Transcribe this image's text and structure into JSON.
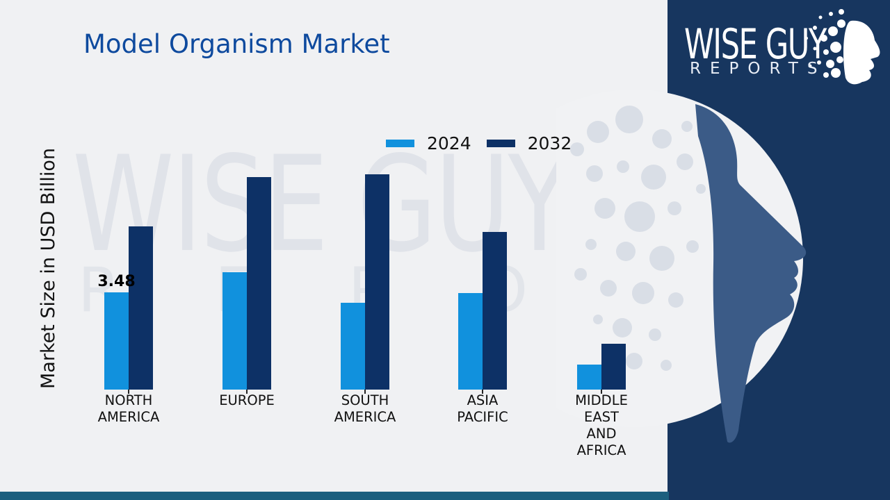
{
  "title": "Model Organism Market",
  "y_axis_label": "Market Size in USD Billion",
  "watermark": {
    "line1": "WISE GUY",
    "line2": "R E P O R T S"
  },
  "logo": {
    "name": "WISE GUY",
    "sub": "REPORTS",
    "icon": "dotted-head-profile"
  },
  "colors": {
    "background": "#f0f1f3",
    "title_blue": "#0e4a9e",
    "bar_2024": "#1191dd",
    "bar_2032": "#0d3166",
    "panel_navy": "#17365f",
    "panel_face_blue": "#3b5b87",
    "panel_circle": "#f1f2f4",
    "panel_dots": "#d9dee6",
    "bottom_strip_teal": "#1d5f7e",
    "watermark_gray": "#e0e3e9"
  },
  "chart_data": {
    "type": "bar",
    "title": "Model Organism Market",
    "ylabel": "Market Size in USD Billion",
    "unit": "USD Billion",
    "categories": [
      "North America",
      "Europe",
      "South America",
      "Asia Pacific",
      "Middle East and Africa"
    ],
    "category_display_lines": [
      [
        "NORTH",
        "AMERICA"
      ],
      [
        "EUROPE"
      ],
      [
        "SOUTH",
        "AMERICA"
      ],
      [
        "ASIA",
        "PACIFIC"
      ],
      [
        "MIDDLE",
        "EAST",
        "AND",
        "AFRICA"
      ]
    ],
    "series": [
      {
        "name": "2024",
        "color": "#1191dd",
        "values": [
          3.48,
          4.2,
          3.1,
          3.45,
          0.9
        ]
      },
      {
        "name": "2032",
        "color": "#0d3166",
        "values": [
          5.85,
          7.6,
          7.7,
          5.65,
          1.65
        ]
      }
    ],
    "data_labels": [
      {
        "series": "2024",
        "category_index": 0,
        "text": "3.48"
      }
    ],
    "legend_position": "top-right",
    "grid": false,
    "ylim": [
      0,
      8
    ]
  }
}
